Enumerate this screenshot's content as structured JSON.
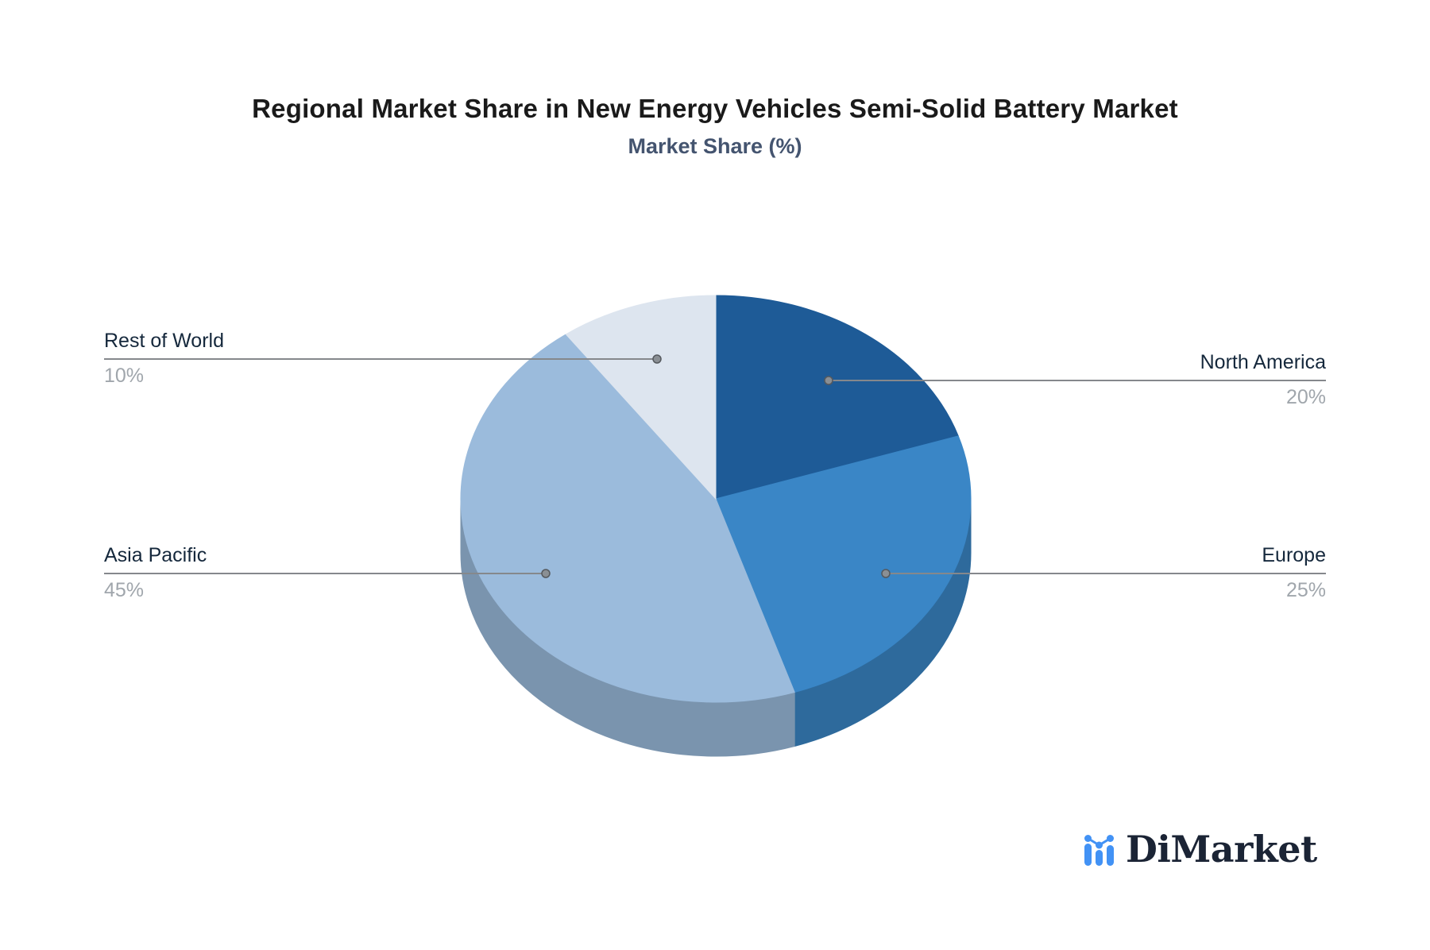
{
  "header": {
    "title": "Regional Market Share in New Energy Vehicles Semi-Solid Battery Market",
    "subtitle": "Market Share (%)"
  },
  "chart_data": {
    "type": "pie",
    "style": "3d",
    "title": "Regional Market Share in New Energy Vehicles Semi-Solid Battery Market",
    "subtitle": "Market Share (%)",
    "unit": "%",
    "start_angle_deg": 0,
    "direction": "clockwise",
    "legend_position": "callout-labels",
    "slices": [
      {
        "label": "North America",
        "value": 20,
        "pct_label": "20%",
        "color": "#1e5b97"
      },
      {
        "label": "Europe",
        "value": 25,
        "pct_label": "25%",
        "color": "#3a86c6"
      },
      {
        "label": "Asia Pacific",
        "value": 45,
        "pct_label": "45%",
        "color": "#9bbbdc"
      },
      {
        "label": "Rest of World",
        "value": 10,
        "pct_label": "10%",
        "color": "#dde5ef"
      }
    ],
    "label_color": "#15283c",
    "pct_color": "#a0a6ac",
    "leader_line_color": "#85888c"
  },
  "branding": {
    "logo_text": "DiMarket",
    "logo_icon": "bar-chart-logo-icon",
    "logo_icon_color": "#4292f5",
    "logo_text_color": "#1b2435"
  }
}
